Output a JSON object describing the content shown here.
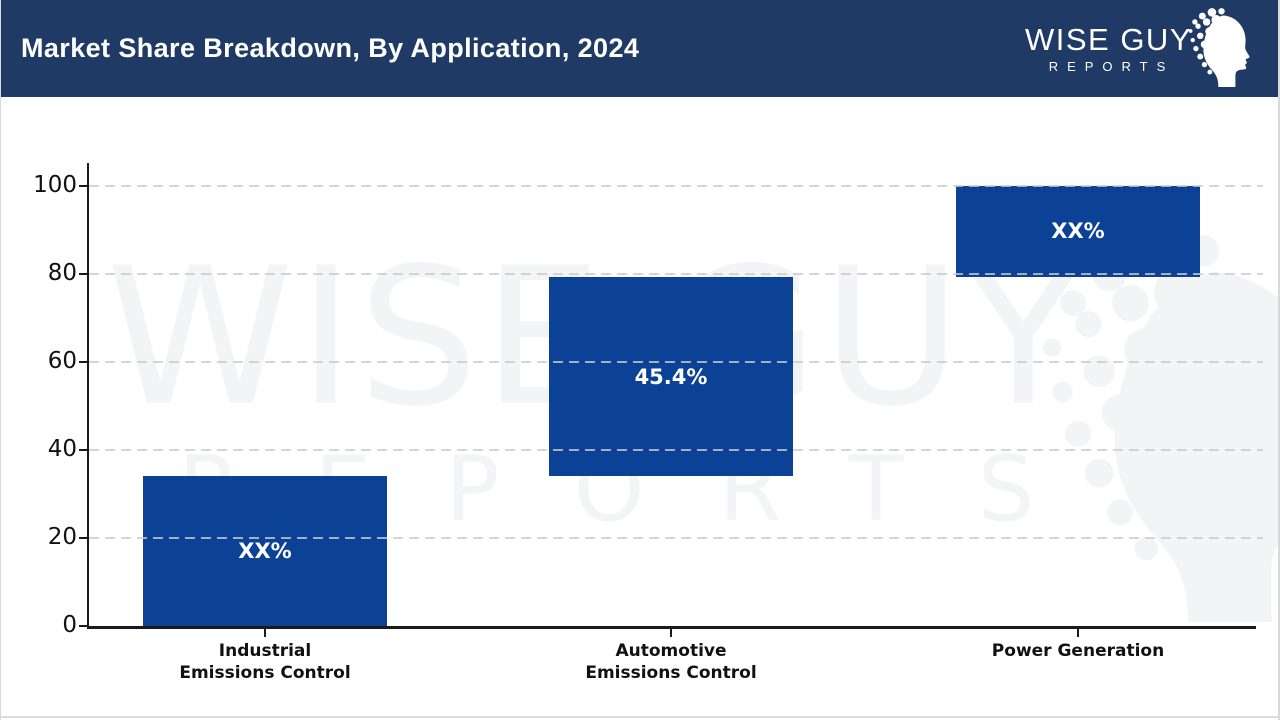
{
  "header": {
    "title": "Market Share Breakdown, By Application, 2024",
    "logo": {
      "line1": "WISE GUY",
      "line2": "REPORTS"
    }
  },
  "watermark": {
    "line1": "WISE GUY",
    "line2": "REPORTS"
  },
  "colors": {
    "header_bg": "#1f3a64",
    "bar": "#0b4296",
    "axis": "#1a1a1a",
    "grid": "#cdcdcd",
    "bar_label": "#ffffff",
    "watermark": "#f3f4f6",
    "tick_label": "#111111"
  },
  "chart_data": {
    "type": "bar",
    "subtype": "stacked-waterfall-percentage",
    "title": "Market Share Breakdown, By Application, 2024",
    "xlabel": "",
    "ylabel": "",
    "ylim": [
      0,
      100
    ],
    "yticks": [
      0,
      20,
      40,
      60,
      80,
      100
    ],
    "grid": "horizontal-dashed",
    "legend": "none",
    "bar_color": "#0b4296",
    "categories": [
      "Industrial Emissions Control",
      "Automotive Emissions Control",
      "Power Generation"
    ],
    "category_lines": [
      [
        "Industrial",
        "Emissions Control"
      ],
      [
        "Automotive",
        "Emissions Control"
      ],
      [
        "Power Generation"
      ]
    ],
    "segments": [
      {
        "category": "Industrial Emissions Control",
        "start": 0,
        "end": 34,
        "value": 34,
        "display_label": "XX%"
      },
      {
        "category": "Automotive Emissions Control",
        "start": 34,
        "end": 79.4,
        "value": 45.4,
        "display_label": "45.4%"
      },
      {
        "category": "Power Generation",
        "start": 79.4,
        "end": 100,
        "value": 20.6,
        "display_label": "XX%"
      }
    ]
  }
}
